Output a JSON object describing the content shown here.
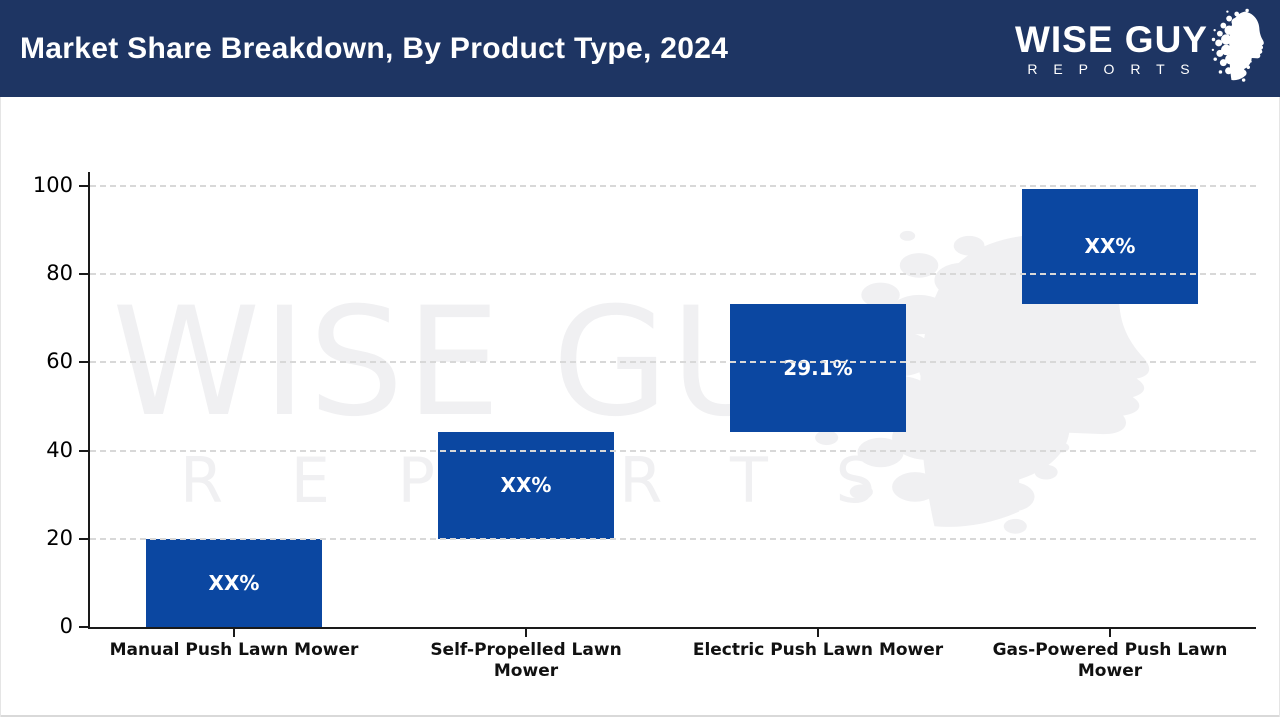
{
  "header": {
    "title": "Market Share Breakdown, By Product Type, 2024",
    "background_color": "#1e3563",
    "logo": {
      "line1": "WISE GUY",
      "line2": "R E P O R T S"
    }
  },
  "watermark": {
    "line1": "WISE GUY",
    "line2": "R E P O R T S"
  },
  "chart_data": {
    "type": "bar",
    "variant": "stacked-waterfall",
    "title": "Market Share Breakdown, By Product Type, 2024",
    "xlabel": "",
    "ylabel": "",
    "ylim": [
      0,
      100
    ],
    "yticks": [
      0,
      20,
      40,
      60,
      80,
      100
    ],
    "grid": "dashed-horizontal",
    "legend": "none",
    "bar_color": "#0b47a1",
    "bar_label_color": "#ffffff",
    "categories": [
      "Manual Push Lawn Mower",
      "Self-Propelled Lawn Mower",
      "Electric Push Lawn Mower",
      "Gas-Powered Push Lawn Mower"
    ],
    "segments": [
      {
        "category": "Manual Push Lawn Mower",
        "start": 0,
        "end": 20,
        "value": 20.0,
        "label": "XX%"
      },
      {
        "category": "Self-Propelled Lawn Mower",
        "start": 20,
        "end": 44.2,
        "value": 24.2,
        "label": "XX%"
      },
      {
        "category": "Electric Push Lawn Mower",
        "start": 44.2,
        "end": 73.3,
        "value": 29.1,
        "label": "29.1%"
      },
      {
        "category": "Gas-Powered Push Lawn Mower",
        "start": 73.3,
        "end": 99.4,
        "value": 26.1,
        "label": "XX%"
      }
    ]
  }
}
